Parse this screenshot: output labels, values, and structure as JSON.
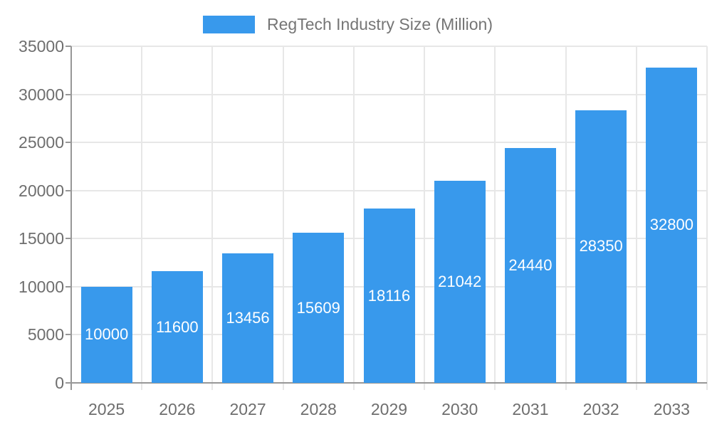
{
  "chart_data": {
    "type": "bar",
    "title": "RegTech Industry Size (Million)",
    "legend": {
      "entries": [
        "RegTech Industry Size (Million)"
      ],
      "position": "top"
    },
    "categories": [
      "2025",
      "2026",
      "2027",
      "2028",
      "2029",
      "2030",
      "2031",
      "2032",
      "2033"
    ],
    "series": [
      {
        "name": "RegTech Industry Size (Million)",
        "values": [
          10000,
          11600,
          13456,
          15609,
          18116,
          21042,
          24440,
          28350,
          32800
        ]
      }
    ],
    "value_labels": [
      "10000",
      "11600",
      "13456",
      "15609",
      "18116",
      "21042",
      "24440",
      "28350",
      "32800"
    ],
    "value_label_style": "white, centered inside bar",
    "xlabel": "",
    "ylabel": "",
    "ylim": [
      0,
      35000
    ],
    "yticks": [
      0,
      5000,
      10000,
      15000,
      20000,
      25000,
      30000,
      35000
    ],
    "ytick_labels": [
      "0",
      "5000",
      "10000",
      "15000",
      "20000",
      "25000",
      "30000",
      "35000"
    ],
    "grid": true,
    "colors": {
      "bar": "#3899EC",
      "gridline": "#E7E7E7",
      "axis_line": "#979797",
      "axis_text": "#6E6E6E",
      "legend_text": "#757575",
      "background": "#FFFFFF"
    }
  }
}
